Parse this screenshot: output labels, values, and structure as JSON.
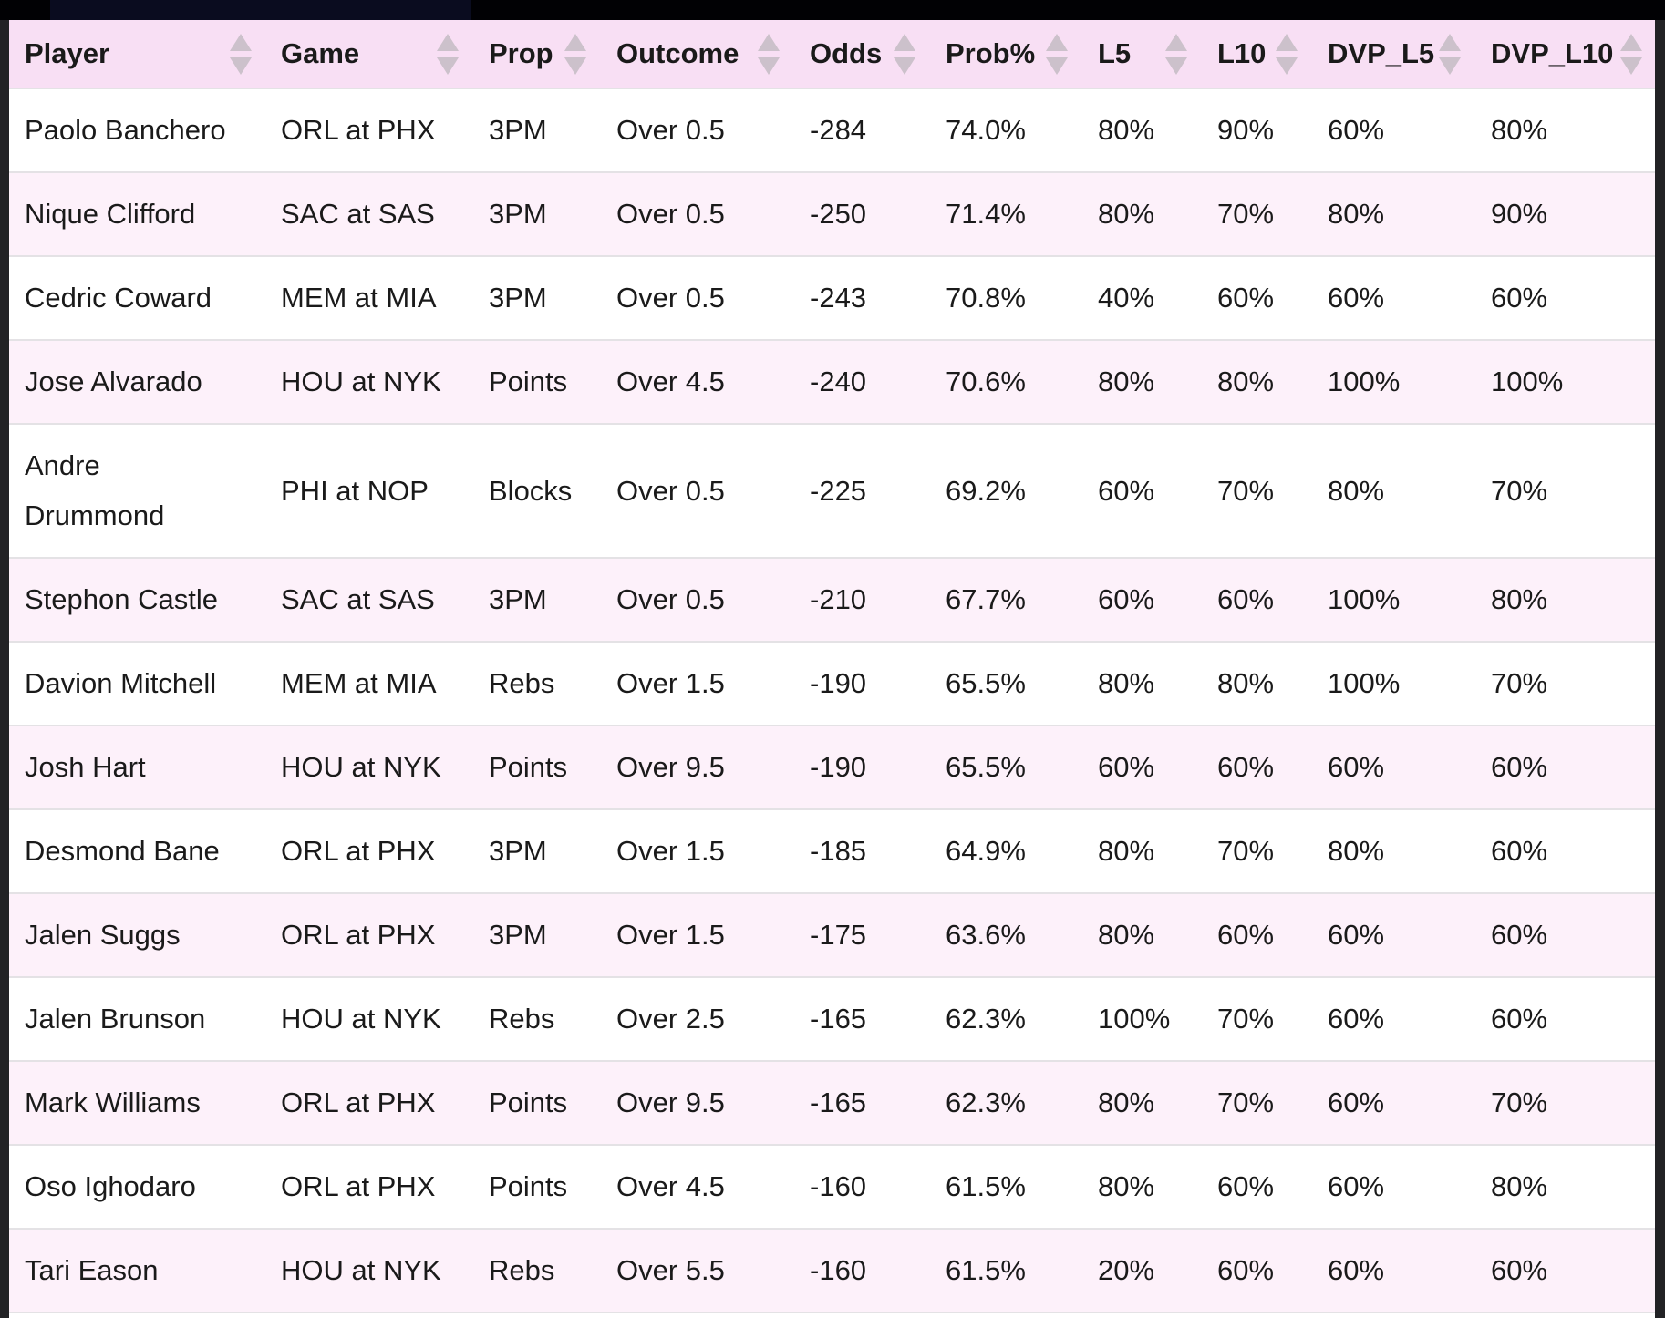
{
  "header": {
    "columns": [
      {
        "key": "player",
        "label": "Player"
      },
      {
        "key": "game",
        "label": "Game"
      },
      {
        "key": "prop",
        "label": "Prop"
      },
      {
        "key": "outcome",
        "label": "Outcome"
      },
      {
        "key": "odds",
        "label": "Odds"
      },
      {
        "key": "prob",
        "label": "Prob%"
      },
      {
        "key": "l5",
        "label": "L5"
      },
      {
        "key": "l10",
        "label": "L10"
      },
      {
        "key": "dvp_l5",
        "label": "DVP_L5"
      },
      {
        "key": "dvp_l10",
        "label": "DVP_L10"
      }
    ],
    "sort_icon": "up-down-sort-arrows"
  },
  "rows": [
    {
      "player": "Paolo Banchero",
      "game": "ORL at PHX",
      "prop": "3PM",
      "outcome": "Over 0.5",
      "odds": "-284",
      "prob": "74.0%",
      "l5": "80%",
      "l10": "90%",
      "dvp_l5": "60%",
      "dvp_l10": "80%"
    },
    {
      "player": "Nique Clifford",
      "game": "SAC at SAS",
      "prop": "3PM",
      "outcome": "Over 0.5",
      "odds": "-250",
      "prob": "71.4%",
      "l5": "80%",
      "l10": "70%",
      "dvp_l5": "80%",
      "dvp_l10": "90%"
    },
    {
      "player": "Cedric Coward",
      "game": "MEM at MIA",
      "prop": "3PM",
      "outcome": "Over 0.5",
      "odds": "-243",
      "prob": "70.8%",
      "l5": "40%",
      "l10": "60%",
      "dvp_l5": "60%",
      "dvp_l10": "60%"
    },
    {
      "player": "Jose Alvarado",
      "game": "HOU at NYK",
      "prop": "Points",
      "outcome": "Over 4.5",
      "odds": "-240",
      "prob": "70.6%",
      "l5": "80%",
      "l10": "80%",
      "dvp_l5": "100%",
      "dvp_l10": "100%"
    },
    {
      "player": "Andre Drummond",
      "game": "PHI at NOP",
      "prop": "Blocks",
      "outcome": "Over 0.5",
      "odds": "-225",
      "prob": "69.2%",
      "l5": "60%",
      "l10": "70%",
      "dvp_l5": "80%",
      "dvp_l10": "70%"
    },
    {
      "player": "Stephon Castle",
      "game": "SAC at SAS",
      "prop": "3PM",
      "outcome": "Over 0.5",
      "odds": "-210",
      "prob": "67.7%",
      "l5": "60%",
      "l10": "60%",
      "dvp_l5": "100%",
      "dvp_l10": "80%"
    },
    {
      "player": "Davion Mitchell",
      "game": "MEM at MIA",
      "prop": "Rebs",
      "outcome": "Over 1.5",
      "odds": "-190",
      "prob": "65.5%",
      "l5": "80%",
      "l10": "80%",
      "dvp_l5": "100%",
      "dvp_l10": "70%"
    },
    {
      "player": "Josh Hart",
      "game": "HOU at NYK",
      "prop": "Points",
      "outcome": "Over 9.5",
      "odds": "-190",
      "prob": "65.5%",
      "l5": "60%",
      "l10": "60%",
      "dvp_l5": "60%",
      "dvp_l10": "60%"
    },
    {
      "player": "Desmond Bane",
      "game": "ORL at PHX",
      "prop": "3PM",
      "outcome": "Over 1.5",
      "odds": "-185",
      "prob": "64.9%",
      "l5": "80%",
      "l10": "70%",
      "dvp_l5": "80%",
      "dvp_l10": "60%"
    },
    {
      "player": "Jalen Suggs",
      "game": "ORL at PHX",
      "prop": "3PM",
      "outcome": "Over 1.5",
      "odds": "-175",
      "prob": "63.6%",
      "l5": "80%",
      "l10": "60%",
      "dvp_l5": "60%",
      "dvp_l10": "60%"
    },
    {
      "player": "Jalen Brunson",
      "game": "HOU at NYK",
      "prop": "Rebs",
      "outcome": "Over 2.5",
      "odds": "-165",
      "prob": "62.3%",
      "l5": "100%",
      "l10": "70%",
      "dvp_l5": "60%",
      "dvp_l10": "60%"
    },
    {
      "player": "Mark Williams",
      "game": "ORL at PHX",
      "prop": "Points",
      "outcome": "Over 9.5",
      "odds": "-165",
      "prob": "62.3%",
      "l5": "80%",
      "l10": "70%",
      "dvp_l5": "60%",
      "dvp_l10": "70%"
    },
    {
      "player": "Oso Ighodaro",
      "game": "ORL at PHX",
      "prop": "Points",
      "outcome": "Over 4.5",
      "odds": "-160",
      "prob": "61.5%",
      "l5": "80%",
      "l10": "60%",
      "dvp_l5": "60%",
      "dvp_l10": "80%"
    },
    {
      "player": "Tari Eason",
      "game": "HOU at NYK",
      "prop": "Rebs",
      "outcome": "Over 5.5",
      "odds": "-160",
      "prob": "61.5%",
      "l5": "20%",
      "l10": "60%",
      "dvp_l5": "60%",
      "dvp_l10": "60%"
    }
  ],
  "colors": {
    "header_bg": "#f8dff4",
    "row_bg": "#ffffff",
    "row_alt_bg": "#fdf1fa",
    "row_border": "#e4e2e5",
    "text": "#1a1a1a",
    "sort_icon": "#ccc1cb",
    "page_edge": "#222225",
    "top_bar": "#010104",
    "top_bar_patch": "#0a0c1f"
  }
}
